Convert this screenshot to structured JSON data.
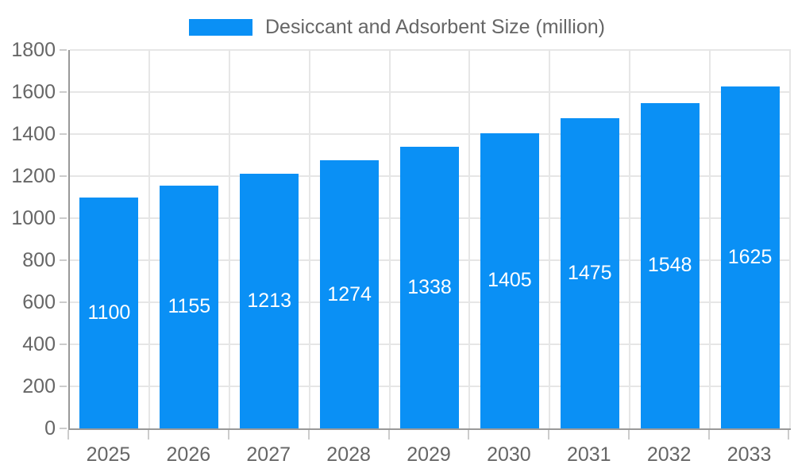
{
  "chart_data": {
    "type": "bar",
    "title": "Desiccant and Adsorbent Size (million)",
    "legend": {
      "label": "Desiccant and Adsorbent Size (million)",
      "position": "top-center"
    },
    "categories": [
      "2025",
      "2026",
      "2027",
      "2028",
      "2029",
      "2030",
      "2031",
      "2032",
      "2033"
    ],
    "values": [
      1100,
      1155,
      1213,
      1274,
      1338,
      1405,
      1475,
      1548,
      1625
    ],
    "xlabel": "",
    "ylabel": "",
    "ylim": [
      0,
      1800
    ],
    "yticks": [
      0,
      200,
      400,
      600,
      800,
      1000,
      1200,
      1400,
      1600,
      1800
    ],
    "grid": true,
    "value_labels": "inside-center",
    "colors": {
      "bar": "#0a90f5",
      "value_label": "#ffffff",
      "axis_text": "#666666",
      "grid_line": "#e6e6e6",
      "axis_line": "#999999"
    }
  }
}
